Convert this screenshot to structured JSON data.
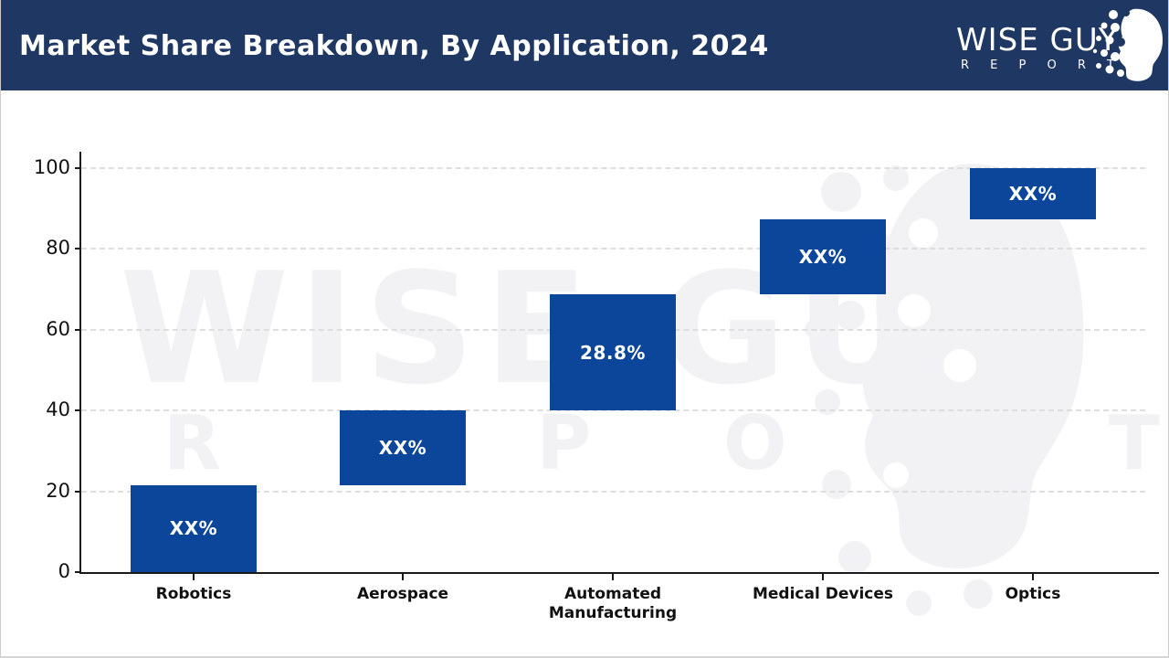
{
  "header": {
    "title": "Market Share Breakdown, By Application, 2024",
    "bg_color": "#1F3863",
    "brand": {
      "line1": "WISE GUY",
      "line2": "R E P O R T S"
    }
  },
  "watermark": {
    "line1": "WISE GUY",
    "line2": "R E P O R T S"
  },
  "chart_data": {
    "type": "bar",
    "subtype": "waterfall",
    "title": "Market Share Breakdown, By Application, 2024",
    "categories": [
      "Robotics",
      "Aerospace",
      "Automated Manufacturing",
      "Medical Devices",
      "Optics"
    ],
    "segments": [
      {
        "category": "Robotics",
        "start": 0,
        "end": 21.5,
        "label": "XX%"
      },
      {
        "category": "Aerospace",
        "start": 21.5,
        "end": 40.0,
        "label": "XX%"
      },
      {
        "category": "Automated Manufacturing",
        "start": 40.0,
        "end": 68.8,
        "label": "28.8%",
        "value": 28.8
      },
      {
        "category": "Medical Devices",
        "start": 68.8,
        "end": 87.4,
        "label": "XX%"
      },
      {
        "category": "Optics",
        "start": 87.4,
        "end": 100.0,
        "label": "XX%"
      }
    ],
    "y_ticks": [
      0,
      20,
      40,
      60,
      80,
      100
    ],
    "ylim": [
      0,
      105
    ],
    "xlabel": "",
    "ylabel": "",
    "legend": "none",
    "grid": "horizontal-dashed",
    "bar_color": "#0C469B",
    "bar_label_color": "#FFFFFF",
    "axis_color": "#1a1a1a",
    "grid_color": "#DEDEDE"
  }
}
